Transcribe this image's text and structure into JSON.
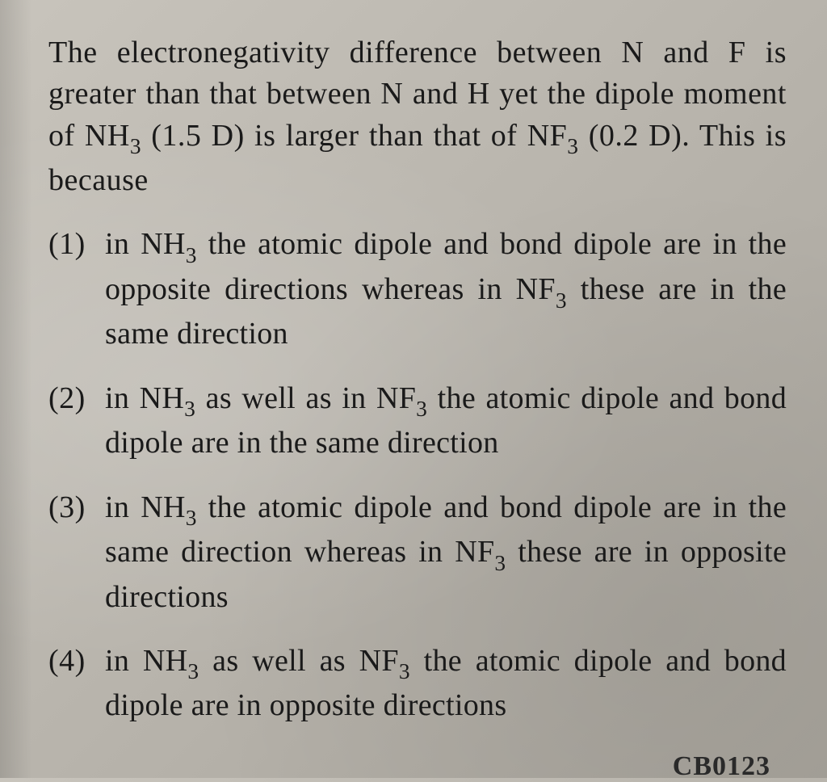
{
  "page": {
    "top_right_partial": "",
    "background_color": "#b8b4ac",
    "text_color": "#1a1a1a",
    "font_family": "Georgia, Times New Roman, serif",
    "question_fontsize": 38,
    "option_fontsize": 38
  },
  "question": {
    "text_html": "The electronegativity difference between N and F is greater than that between N and H yet the dipole moment of NH<sub>3</sub> (1.5 D) is larger than that of NF<sub>3</sub> (0.2 D). This is because"
  },
  "options": [
    {
      "number": "(1)",
      "text_html": "in NH<sub>3</sub> the atomic dipole and bond dipole are in the opposite directions whereas in NF<sub>3</sub> these are in the same direction"
    },
    {
      "number": "(2)",
      "text_html": "in NH<sub>3</sub> as well as in NF<sub>3</sub> the atomic dipole and bond dipole are in the same direction"
    },
    {
      "number": "(3)",
      "text_html": "in NH<sub>3</sub> the atomic dipole and bond dipole are in the same direction whereas in NF<sub>3</sub> these are in opposite directions"
    },
    {
      "number": "(4)",
      "text_html": "in NH<sub>3</sub> as well as NF<sub>3</sub> the atomic dipole and bond dipole are in opposite directions"
    }
  ],
  "footer": {
    "code": "CB0123"
  }
}
